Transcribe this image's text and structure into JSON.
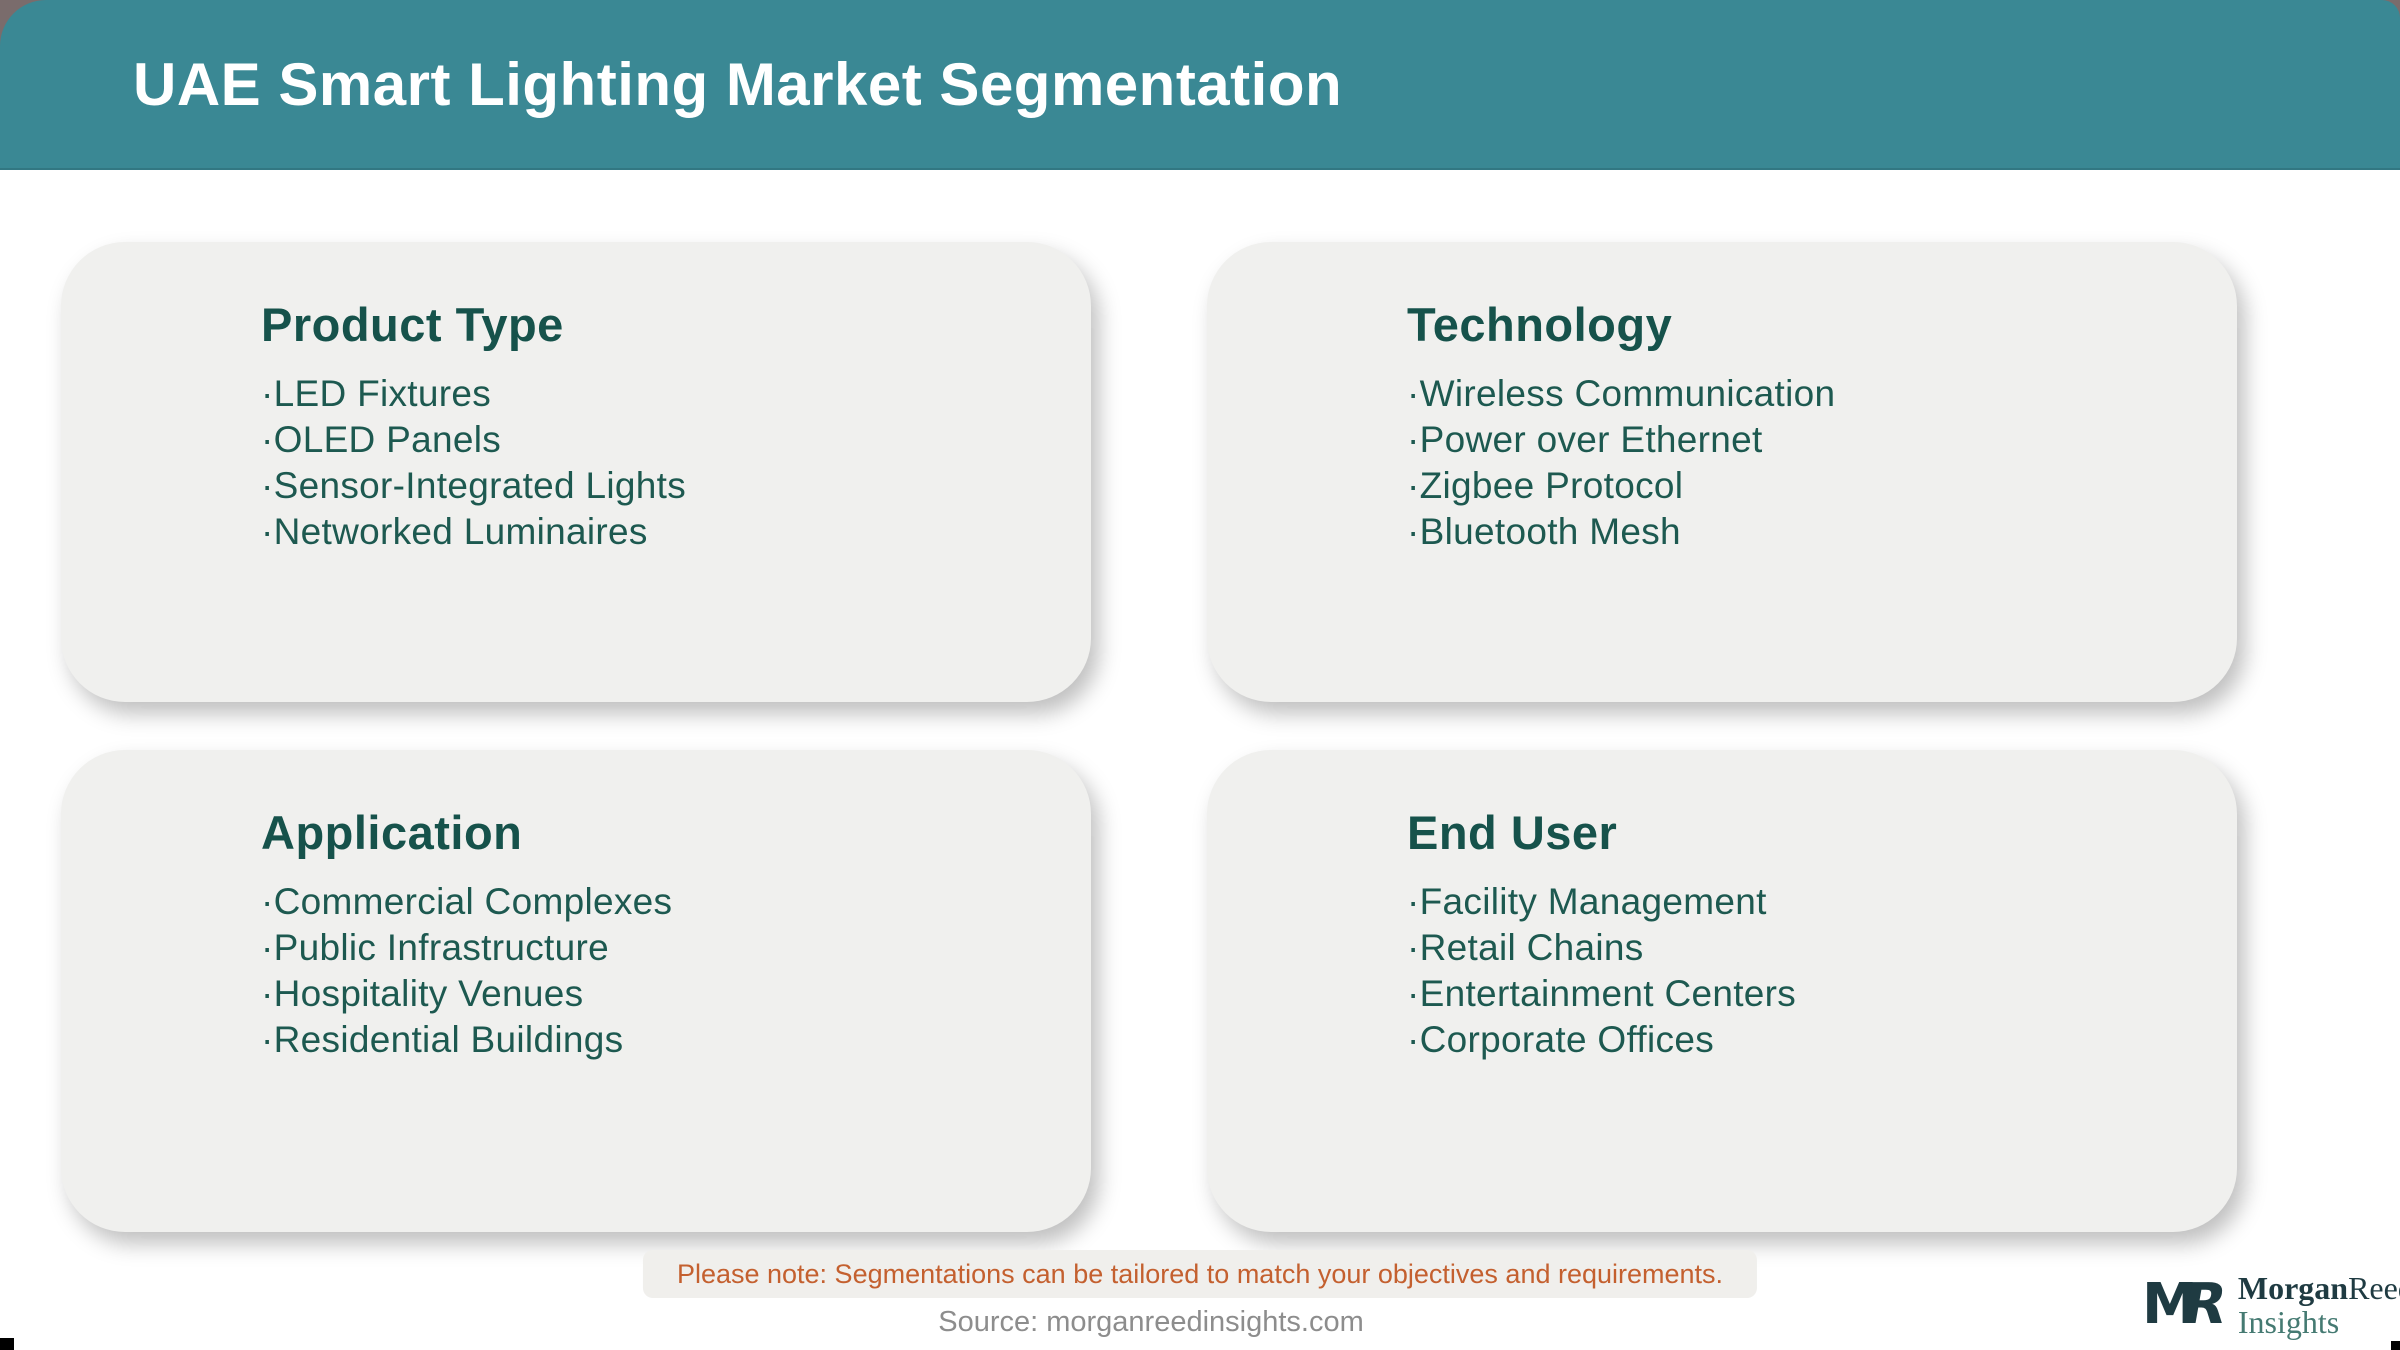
{
  "colors": {
    "header_teal": "#3a8894",
    "corner_gray": "#7a6c6c",
    "card_bg": "#f0f0ee",
    "heading_green": "#16524b",
    "item_green": "#1d5950",
    "note_orange": "#c4602f",
    "note_bg": "#f0efec",
    "source_gray": "#8d8d8d",
    "logo_dark": "#1f3b42",
    "logo_teal": "#457a72",
    "title_white": "#ffffff"
  },
  "header": {
    "title": "UAE Smart Lighting Market Segmentation"
  },
  "cards": [
    {
      "title": "Product Type",
      "items": [
        "LED Fixtures",
        "OLED Panels",
        "Sensor-Integrated Lights",
        "Networked Luminaires"
      ]
    },
    {
      "title": "Technology",
      "items": [
        "Wireless Communication",
        "Power over Ethernet",
        "Zigbee Protocol",
        "Bluetooth Mesh"
      ]
    },
    {
      "title": "Application",
      "items": [
        "Commercial Complexes",
        "Public Infrastructure",
        "Hospitality Venues",
        "Residential Buildings"
      ]
    },
    {
      "title": "End User",
      "items": [
        "Facility Management",
        "Retail Chains",
        "Entertainment Centers",
        "Corporate Offices"
      ]
    }
  ],
  "footer": {
    "note": "Please note: Segmentations can be tailored to match your objectives and requirements.",
    "source": "Source: morganreedinsights.com"
  },
  "logo": {
    "monogram_m": "M",
    "monogram_r": "R",
    "name_bold": "Morgan",
    "name_regular": "Reed",
    "subtitle": "Insights"
  }
}
